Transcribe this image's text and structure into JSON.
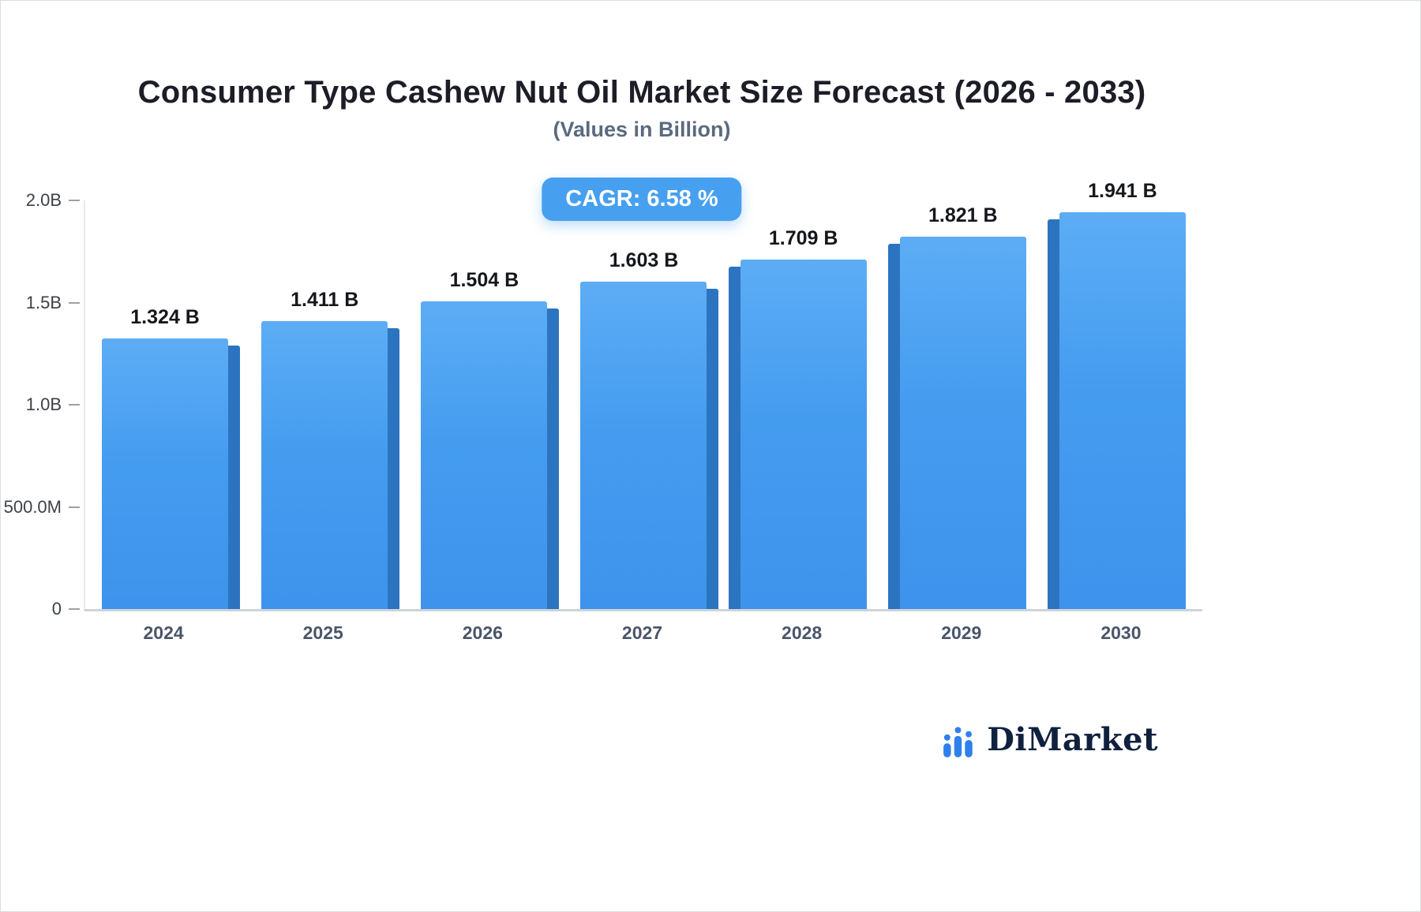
{
  "header": {
    "title": "Consumer Type Cashew Nut Oil Market Size Forecast (2026 - 2033)",
    "subtitle": "(Values in Billion)",
    "cagr_badge": "CAGR: 6.58 %"
  },
  "brand": {
    "name": "DiMarket"
  },
  "colors": {
    "bar_fill": "#459cef",
    "bar_side_shade": "#2d74c0",
    "badge_background": "#47a0ef",
    "brand_blue": "#2f80ed",
    "axis_line": "#cfd4da"
  },
  "chart_data": {
    "type": "bar",
    "title": "Consumer Type Cashew Nut Oil Market Size Forecast (2026 - 2033)",
    "subtitle": "(Values in Billion)",
    "categories": [
      "2024",
      "2025",
      "2026",
      "2027",
      "2028",
      "2029",
      "2030"
    ],
    "values": [
      1.324,
      1.411,
      1.504,
      1.603,
      1.709,
      1.821,
      1.941
    ],
    "value_labels": [
      "1.324 B",
      "1.411 B",
      "1.504 B",
      "1.603 B",
      "1.709 B",
      "1.821 B",
      "1.941 B"
    ],
    "unit": "Billion USD",
    "xlabel": "",
    "ylabel": "",
    "ylim": [
      0,
      2.0
    ],
    "y_ticks": [
      "2.0B",
      "1.5B",
      "1.0B",
      "500.0M",
      "0"
    ],
    "y_tick_values": [
      2.0,
      1.5,
      1.0,
      0.5,
      0
    ],
    "grid": false,
    "legend": "none",
    "annotation": "CAGR: 6.58 %"
  }
}
